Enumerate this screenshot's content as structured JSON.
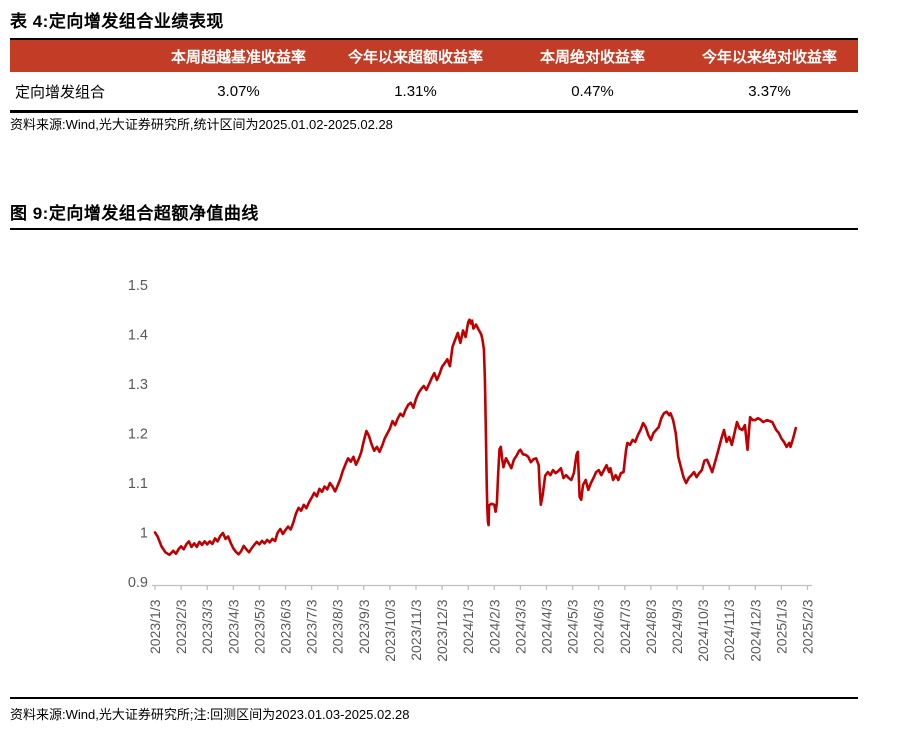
{
  "table_section": {
    "title": "表 4:定向增发组合业绩表现",
    "table": {
      "header_bg": "#C23C26",
      "columns": [
        "",
        "本周超越基准收益率",
        "今年以来超额收益率",
        "本周绝对收益率",
        "今年以来绝对收益率"
      ],
      "rows": [
        {
          "label": "定向增发组合",
          "values": [
            "3.07%",
            "1.31%",
            "0.47%",
            "3.37%"
          ]
        }
      ]
    },
    "source": "资料来源:Wind,光大证券研究所,统计区间为2025.01.02-2025.02.28"
  },
  "figure_section": {
    "title": "图 9:定向增发组合超额净值曲线",
    "source": "资料来源:Wind,光大证券研究所;注:回测区间为2023.01.03-2025.02.28"
  },
  "chart_data": {
    "type": "line",
    "title": "定向增发组合超额净值曲线",
    "xlabel": "",
    "ylabel": "",
    "ylim": [
      0.9,
      1.5
    ],
    "yticks": [
      0.9,
      1.0,
      1.1,
      1.2,
      1.3,
      1.4,
      1.5
    ],
    "ytick_labels": [
      "0.9",
      "1",
      "1.1",
      "1.2",
      "1.3",
      "1.4",
      "1.5"
    ],
    "xtick_labels": [
      "2023/1/3",
      "2023/2/3",
      "2023/3/3",
      "2023/4/3",
      "2023/5/3",
      "2023/6/3",
      "2023/7/3",
      "2023/8/3",
      "2023/9/3",
      "2023/10/3",
      "2023/11/3",
      "2023/12/3",
      "2024/1/3",
      "2024/2/3",
      "2024/3/3",
      "2024/4/3",
      "2024/5/3",
      "2024/6/3",
      "2024/7/3",
      "2024/8/3",
      "2024/9/3",
      "2024/10/3",
      "2024/11/3",
      "2024/12/3",
      "2025/1/3",
      "2025/2/3"
    ],
    "grid": false,
    "legend": "none",
    "line_color": "#C00000",
    "axis_color": "#BFBFBF",
    "label_color": "#595959",
    "series": [
      {
        "name": "定向增发组合超额净值",
        "points": [
          [
            0,
            1.0
          ],
          [
            0.1,
            0.992
          ],
          [
            0.25,
            0.972
          ],
          [
            0.4,
            0.96
          ],
          [
            0.55,
            0.955
          ],
          [
            0.7,
            0.963
          ],
          [
            0.8,
            0.957
          ],
          [
            0.9,
            0.966
          ],
          [
            1.0,
            0.972
          ],
          [
            1.1,
            0.966
          ],
          [
            1.2,
            0.976
          ],
          [
            1.3,
            0.982
          ],
          [
            1.4,
            0.971
          ],
          [
            1.5,
            0.978
          ],
          [
            1.6,
            0.971
          ],
          [
            1.7,
            0.981
          ],
          [
            1.8,
            0.975
          ],
          [
            1.9,
            0.982
          ],
          [
            2.0,
            0.976
          ],
          [
            2.1,
            0.982
          ],
          [
            2.2,
            0.977
          ],
          [
            2.3,
            0.988
          ],
          [
            2.4,
            0.982
          ],
          [
            2.5,
            0.993
          ],
          [
            2.6,
            0.999
          ],
          [
            2.7,
            0.987
          ],
          [
            2.8,
            0.992
          ],
          [
            2.9,
            0.979
          ],
          [
            3.0,
            0.968
          ],
          [
            3.1,
            0.961
          ],
          [
            3.2,
            0.956
          ],
          [
            3.3,
            0.962
          ],
          [
            3.4,
            0.973
          ],
          [
            3.5,
            0.966
          ],
          [
            3.6,
            0.96
          ],
          [
            3.7,
            0.968
          ],
          [
            3.8,
            0.975
          ],
          [
            3.9,
            0.981
          ],
          [
            4.0,
            0.976
          ],
          [
            4.1,
            0.983
          ],
          [
            4.2,
            0.978
          ],
          [
            4.3,
            0.985
          ],
          [
            4.4,
            0.98
          ],
          [
            4.5,
            0.987
          ],
          [
            4.6,
            0.983
          ],
          [
            4.7,
            1.0
          ],
          [
            4.8,
            1.007
          ],
          [
            4.9,
            0.997
          ],
          [
            5.0,
            1.005
          ],
          [
            5.1,
            1.012
          ],
          [
            5.2,
            1.006
          ],
          [
            5.3,
            1.02
          ],
          [
            5.4,
            1.038
          ],
          [
            5.5,
            1.05
          ],
          [
            5.6,
            1.044
          ],
          [
            5.7,
            1.056
          ],
          [
            5.8,
            1.049
          ],
          [
            5.9,
            1.061
          ],
          [
            6.0,
            1.07
          ],
          [
            6.1,
            1.08
          ],
          [
            6.2,
            1.073
          ],
          [
            6.3,
            1.088
          ],
          [
            6.4,
            1.082
          ],
          [
            6.5,
            1.093
          ],
          [
            6.6,
            1.087
          ],
          [
            6.7,
            1.1
          ],
          [
            6.8,
            1.093
          ],
          [
            6.9,
            1.083
          ],
          [
            7.0,
            1.095
          ],
          [
            7.1,
            1.108
          ],
          [
            7.2,
            1.125
          ],
          [
            7.3,
            1.138
          ],
          [
            7.4,
            1.15
          ],
          [
            7.5,
            1.143
          ],
          [
            7.6,
            1.153
          ],
          [
            7.7,
            1.137
          ],
          [
            7.8,
            1.148
          ],
          [
            7.9,
            1.162
          ],
          [
            8.0,
            1.185
          ],
          [
            8.1,
            1.205
          ],
          [
            8.2,
            1.195
          ],
          [
            8.3,
            1.178
          ],
          [
            8.4,
            1.165
          ],
          [
            8.5,
            1.173
          ],
          [
            8.6,
            1.163
          ],
          [
            8.7,
            1.175
          ],
          [
            8.8,
            1.19
          ],
          [
            8.9,
            1.2
          ],
          [
            9.0,
            1.21
          ],
          [
            9.1,
            1.225
          ],
          [
            9.2,
            1.217
          ],
          [
            9.3,
            1.23
          ],
          [
            9.4,
            1.24
          ],
          [
            9.5,
            1.235
          ],
          [
            9.6,
            1.248
          ],
          [
            9.7,
            1.258
          ],
          [
            9.8,
            1.262
          ],
          [
            9.9,
            1.252
          ],
          [
            10.0,
            1.27
          ],
          [
            10.1,
            1.282
          ],
          [
            10.2,
            1.29
          ],
          [
            10.3,
            1.296
          ],
          [
            10.4,
            1.288
          ],
          [
            10.5,
            1.3
          ],
          [
            10.6,
            1.312
          ],
          [
            10.7,
            1.322
          ],
          [
            10.8,
            1.308
          ],
          [
            10.9,
            1.32
          ],
          [
            11.0,
            1.335
          ],
          [
            11.1,
            1.342
          ],
          [
            11.2,
            1.35
          ],
          [
            11.3,
            1.336
          ],
          [
            11.4,
            1.375
          ],
          [
            11.5,
            1.39
          ],
          [
            11.6,
            1.403
          ],
          [
            11.7,
            1.383
          ],
          [
            11.8,
            1.408
          ],
          [
            11.9,
            1.395
          ],
          [
            12.0,
            1.425
          ],
          [
            12.05,
            1.43
          ],
          [
            12.1,
            1.422
          ],
          [
            12.15,
            1.428
          ],
          [
            12.2,
            1.412
          ],
          [
            12.3,
            1.42
          ],
          [
            12.4,
            1.41
          ],
          [
            12.5,
            1.4
          ],
          [
            12.55,
            1.388
          ],
          [
            12.6,
            1.37
          ],
          [
            12.64,
            1.31
          ],
          [
            12.68,
            1.2
          ],
          [
            12.71,
            1.1
          ],
          [
            12.73,
            1.05
          ],
          [
            12.76,
            1.02
          ],
          [
            12.78,
            1.015
          ],
          [
            12.8,
            1.055
          ],
          [
            12.9,
            1.058
          ],
          [
            13.0,
            1.056
          ],
          [
            13.05,
            1.042
          ],
          [
            13.1,
            1.06
          ],
          [
            13.15,
            1.12
          ],
          [
            13.2,
            1.168
          ],
          [
            13.25,
            1.173
          ],
          [
            13.3,
            1.15
          ],
          [
            13.35,
            1.132
          ],
          [
            13.45,
            1.15
          ],
          [
            13.55,
            1.14
          ],
          [
            13.65,
            1.13
          ],
          [
            13.75,
            1.147
          ],
          [
            13.85,
            1.155
          ],
          [
            13.95,
            1.165
          ],
          [
            14.0,
            1.167
          ],
          [
            14.1,
            1.158
          ],
          [
            14.2,
            1.157
          ],
          [
            14.3,
            1.153
          ],
          [
            14.4,
            1.142
          ],
          [
            14.5,
            1.148
          ],
          [
            14.6,
            1.15
          ],
          [
            14.7,
            1.136
          ],
          [
            14.74,
            1.09
          ],
          [
            14.78,
            1.056
          ],
          [
            14.85,
            1.075
          ],
          [
            14.95,
            1.115
          ],
          [
            15.05,
            1.122
          ],
          [
            15.15,
            1.116
          ],
          [
            15.25,
            1.126
          ],
          [
            15.35,
            1.12
          ],
          [
            15.45,
            1.124
          ],
          [
            15.55,
            1.13
          ],
          [
            15.65,
            1.11
          ],
          [
            15.75,
            1.116
          ],
          [
            15.85,
            1.11
          ],
          [
            15.95,
            1.106
          ],
          [
            16.05,
            1.12
          ],
          [
            16.15,
            1.157
          ],
          [
            16.2,
            1.163
          ],
          [
            16.27,
            1.072
          ],
          [
            16.33,
            1.066
          ],
          [
            16.4,
            1.096
          ],
          [
            16.5,
            1.106
          ],
          [
            16.6,
            1.086
          ],
          [
            16.7,
            1.1
          ],
          [
            16.8,
            1.11
          ],
          [
            16.9,
            1.122
          ],
          [
            17.0,
            1.126
          ],
          [
            17.1,
            1.116
          ],
          [
            17.2,
            1.126
          ],
          [
            17.3,
            1.136
          ],
          [
            17.4,
            1.122
          ],
          [
            17.45,
            1.13
          ],
          [
            17.55,
            1.106
          ],
          [
            17.65,
            1.116
          ],
          [
            17.75,
            1.106
          ],
          [
            17.85,
            1.12
          ],
          [
            17.95,
            1.122
          ],
          [
            18.05,
            1.167
          ],
          [
            18.1,
            1.181
          ],
          [
            18.2,
            1.177
          ],
          [
            18.3,
            1.187
          ],
          [
            18.4,
            1.183
          ],
          [
            18.5,
            1.197
          ],
          [
            18.6,
            1.207
          ],
          [
            18.7,
            1.221
          ],
          [
            18.8,
            1.213
          ],
          [
            18.9,
            1.197
          ],
          [
            19.0,
            1.187
          ],
          [
            19.1,
            1.201
          ],
          [
            19.2,
            1.207
          ],
          [
            19.3,
            1.213
          ],
          [
            19.4,
            1.231
          ],
          [
            19.5,
            1.241
          ],
          [
            19.6,
            1.244
          ],
          [
            19.7,
            1.237
          ],
          [
            19.75,
            1.241
          ],
          [
            19.85,
            1.227
          ],
          [
            19.95,
            1.201
          ],
          [
            20.05,
            1.153
          ],
          [
            20.15,
            1.132
          ],
          [
            20.25,
            1.112
          ],
          [
            20.35,
            1.1
          ],
          [
            20.45,
            1.11
          ],
          [
            20.55,
            1.116
          ],
          [
            20.65,
            1.122
          ],
          [
            20.75,
            1.112
          ],
          [
            20.85,
            1.12
          ],
          [
            20.95,
            1.126
          ],
          [
            21.05,
            1.145
          ],
          [
            21.15,
            1.147
          ],
          [
            21.25,
            1.135
          ],
          [
            21.35,
            1.122
          ],
          [
            21.5,
            1.15
          ],
          [
            21.6,
            1.17
          ],
          [
            21.7,
            1.19
          ],
          [
            21.8,
            1.207
          ],
          [
            21.9,
            1.183
          ],
          [
            22.0,
            1.193
          ],
          [
            22.1,
            1.177
          ],
          [
            22.2,
            1.2
          ],
          [
            22.3,
            1.223
          ],
          [
            22.4,
            1.21
          ],
          [
            22.5,
            1.207
          ],
          [
            22.6,
            1.217
          ],
          [
            22.7,
            1.167
          ],
          [
            22.8,
            1.233
          ],
          [
            22.9,
            1.227
          ],
          [
            23.0,
            1.227
          ],
          [
            23.1,
            1.231
          ],
          [
            23.2,
            1.228
          ],
          [
            23.3,
            1.223
          ],
          [
            23.45,
            1.227
          ],
          [
            23.55,
            1.225
          ],
          [
            23.65,
            1.223
          ],
          [
            23.8,
            1.207
          ],
          [
            23.9,
            1.201
          ],
          [
            24.0,
            1.19
          ],
          [
            24.1,
            1.183
          ],
          [
            24.2,
            1.173
          ],
          [
            24.3,
            1.181
          ],
          [
            24.35,
            1.173
          ],
          [
            24.45,
            1.19
          ],
          [
            24.55,
            1.211
          ]
        ]
      }
    ]
  }
}
